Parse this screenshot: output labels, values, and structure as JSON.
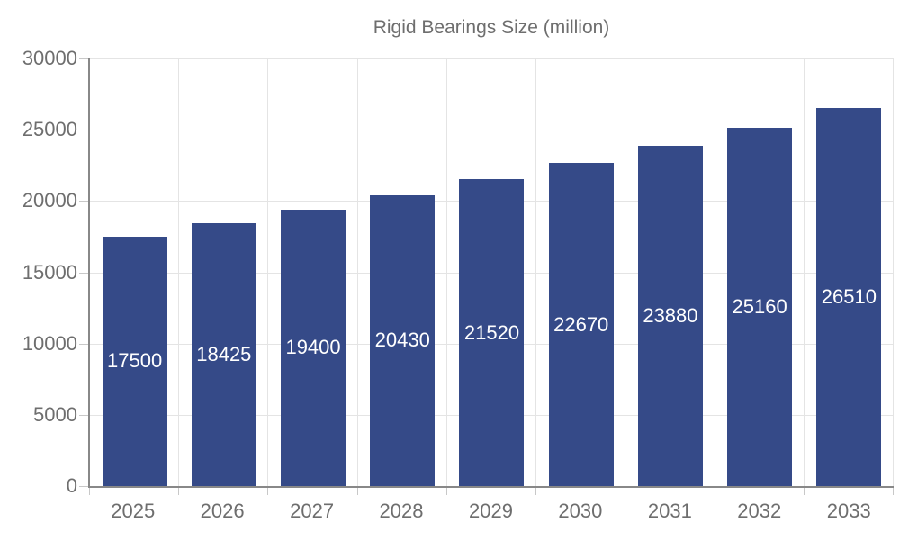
{
  "legend": {
    "label": "Rigid Bearings Size (million)"
  },
  "chart_data": {
    "type": "bar",
    "title": "",
    "categories": [
      "2025",
      "2026",
      "2027",
      "2028",
      "2029",
      "2030",
      "2031",
      "2032",
      "2033"
    ],
    "series": [
      {
        "name": "Rigid Bearings Size (million)",
        "values": [
          17500,
          18425,
          19400,
          20430,
          21520,
          22670,
          23880,
          25160,
          26510
        ]
      }
    ],
    "data_labels": [
      "17500",
      "18425",
      "19400",
      "20430",
      "21520",
      "22670",
      "23880",
      "25160",
      "26510"
    ],
    "xlabel": "",
    "ylabel": "",
    "ylim": [
      0,
      30000
    ],
    "yticks": [
      0,
      5000,
      10000,
      15000,
      20000,
      25000,
      30000
    ],
    "grid": "horizontal and vertical light gridlines",
    "legend_position": "top-center",
    "label_position": "inside-center"
  },
  "colors": {
    "bar": "#354a88",
    "data_label": "#ffffff",
    "axis_line": "#888888",
    "gridline": "#e4e4e4",
    "tick": "#c8c8c8",
    "axis_text": "#6e6e6e",
    "background": "#ffffff"
  }
}
